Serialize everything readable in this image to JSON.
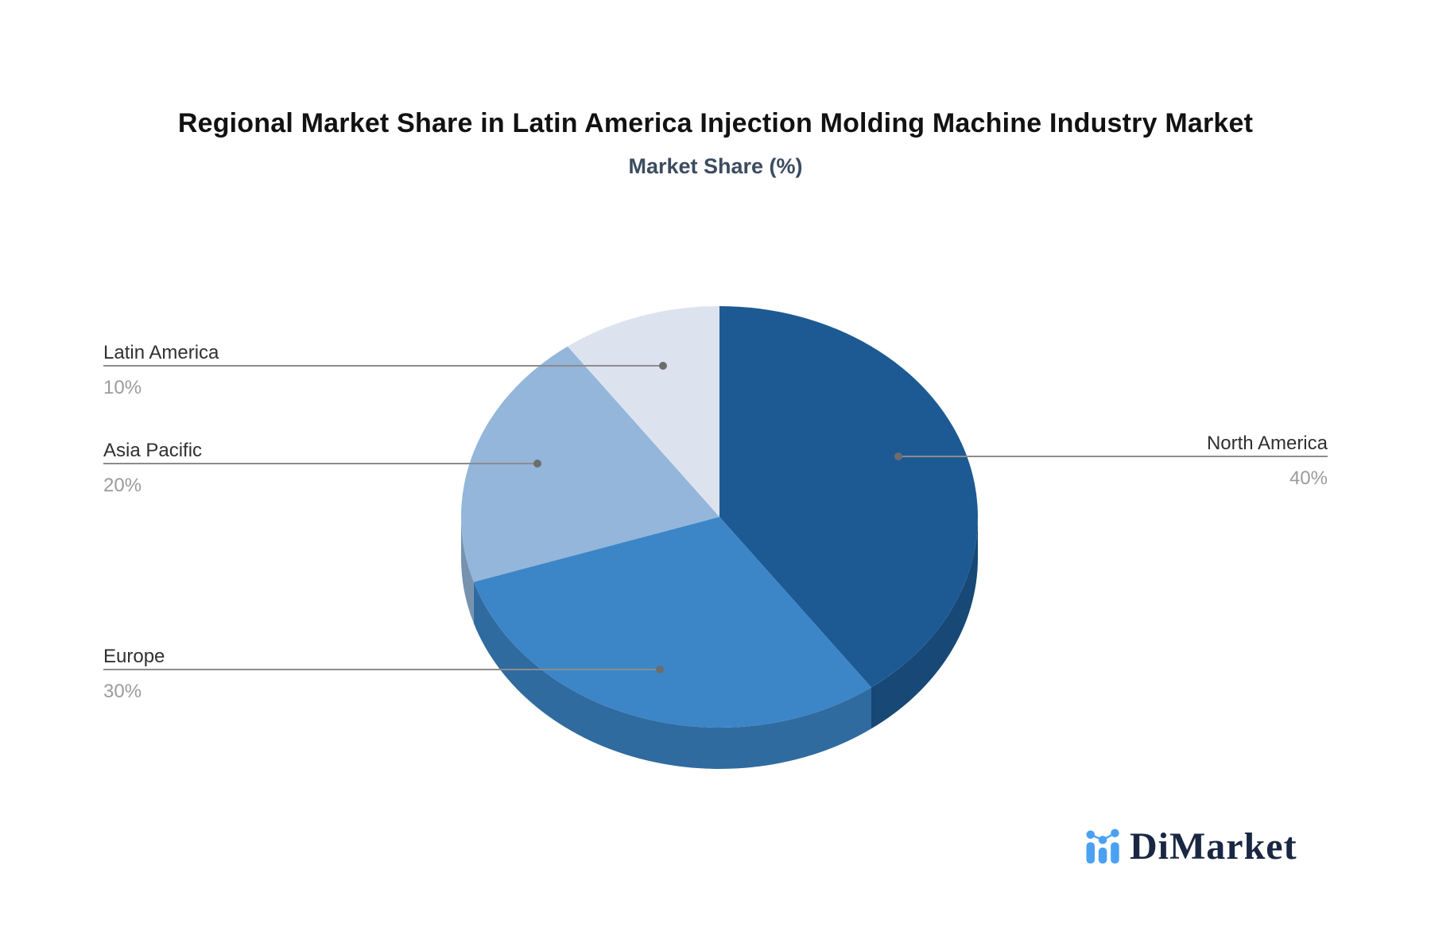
{
  "title": "Regional Market Share in Latin America Injection Molding Machine Industry Market",
  "subtitle": "Market Share (%)",
  "chart_data": {
    "type": "pie",
    "style": "3d",
    "title": "Regional Market Share in Latin America Injection Molding Machine Industry Market",
    "subtitle": "Market Share (%)",
    "unit": "%",
    "start_angle_deg": 0,
    "direction": "clockwise",
    "legend": "none",
    "labels": "callout-leader-lines",
    "slices": [
      {
        "label": "North America",
        "value": 40,
        "pct_label": "40%",
        "color": "#1d5a93"
      },
      {
        "label": "Europe",
        "value": 30,
        "pct_label": "30%",
        "color": "#3c86c8"
      },
      {
        "label": "Asia Pacific",
        "value": 20,
        "pct_label": "20%",
        "color": "#93b6da"
      },
      {
        "label": "Latin America",
        "value": 10,
        "pct_label": "10%",
        "color": "#dce3ef"
      }
    ]
  },
  "watermark": {
    "brand": "DiMarket",
    "icon": "bar-line-chart-logo-icon"
  },
  "colors": {
    "background": "#ffffff",
    "title": "#121212",
    "subtitle": "#3c4b60",
    "label": "#303030",
    "percent": "#9b9b9b",
    "leader_line": "#8c8c8c",
    "leader_dot": "#6d6d6d",
    "logo_icon": "#4ba1f1",
    "logo_text": "#1a2742"
  }
}
